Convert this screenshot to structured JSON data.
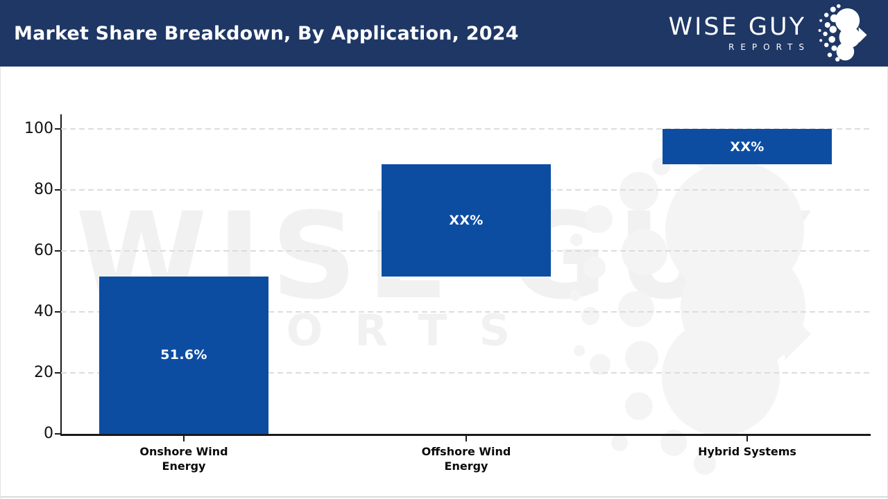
{
  "header": {
    "title": "Market Share Breakdown, By Application, 2024",
    "logo": {
      "line1": "WISE GUY",
      "line2": "REPORTS"
    }
  },
  "watermark": {
    "line1": "WISE GUY",
    "line2": "REPORTS"
  },
  "colors": {
    "header_bg": "#1e3765",
    "bar": "#0c4da2",
    "bar_label": "#ffffff",
    "grid": "#dcdcdc",
    "axis": "#1a1a1a",
    "watermark": "#f1f1f1"
  },
  "chart_data": {
    "type": "bar",
    "subtype": "stacked-waterfall-percentage",
    "title": "Market Share Breakdown, By Application, 2024",
    "xlabel": "",
    "ylabel": "",
    "ylim": [
      0,
      100
    ],
    "yticks": [
      0,
      20,
      40,
      60,
      80,
      100
    ],
    "grid": "horizontal-dashed",
    "legend": "none",
    "categories": [
      "Onshore Wind Energy",
      "Offshore Wind Energy",
      "Hybrid Systems"
    ],
    "category_label_lines": [
      [
        "Onshore Wind",
        "Energy"
      ],
      [
        "Offshore Wind",
        "Energy"
      ],
      [
        "Hybrid Systems"
      ]
    ],
    "bars": [
      {
        "category": "Onshore Wind Energy",
        "start": 0,
        "end": 51.6,
        "value": 51.6,
        "label": "51.6%"
      },
      {
        "category": "Offshore Wind Energy",
        "start": 51.6,
        "end": 88.4,
        "value": 36.8,
        "label": "XX%"
      },
      {
        "category": "Hybrid Systems",
        "start": 88.4,
        "end": 100,
        "value": 11.6,
        "label": "XX%"
      }
    ]
  }
}
